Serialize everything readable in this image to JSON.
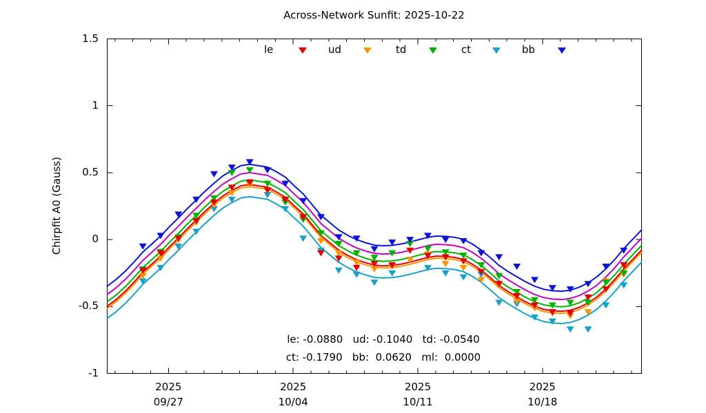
{
  "title": "Across-Network Sunfit: 2025-10-22",
  "ylabel": "Chirpfit A0 (Gauss)",
  "legend": [
    {
      "label": "le",
      "color": "#e40000"
    },
    {
      "label": "ud",
      "color": "#ff9400"
    },
    {
      "label": "td",
      "color": "#00b400"
    },
    {
      "label": "ct",
      "color": "#17a0c8"
    },
    {
      "label": "bb",
      "color": "#0a14d8"
    }
  ],
  "annotation": {
    "line1": "le: -0.0880   ud: -0.1040   td: -0.0540",
    "line2": "ct: -0.1790   bb:  0.0620   ml:  0.0000"
  },
  "chart_data": {
    "type": "line",
    "title": "Across-Network Sunfit: 2025-10-22",
    "xlabel": "",
    "ylabel": "Chirpfit A0 (Gauss)",
    "ylim": [
      -1,
      1.5
    ],
    "yticks": [
      {
        "v": -1,
        "label": "-1"
      },
      {
        "v": -0.5,
        "label": "-0.5"
      },
      {
        "v": 0,
        "label": "0"
      },
      {
        "v": 0.5,
        "label": "0.5"
      },
      {
        "v": 1,
        "label": "1"
      },
      {
        "v": 1.5,
        "label": "1.5"
      }
    ],
    "xlim_days": [
      0,
      30
    ],
    "xticks": [
      {
        "t": 3.44,
        "year": "2025",
        "date": "09/27"
      },
      {
        "t": 10.44,
        "year": "2025",
        "date": "10/04"
      },
      {
        "t": 17.44,
        "year": "2025",
        "date": "10/11"
      },
      {
        "t": 24.44,
        "year": "2025",
        "date": "10/18"
      }
    ],
    "minor_xtick_first": 0.44,
    "minor_xtick_step": 1,
    "grid": false,
    "legend_position": "top-inside",
    "fit_offsets": {
      "le": -0.088,
      "ud": -0.104,
      "td": -0.054,
      "ct": -0.179,
      "bb": 0.062,
      "ml": 0.0
    },
    "master_curve": {
      "t": [
        0,
        0.5,
        1,
        1.5,
        2,
        2.5,
        3,
        3.5,
        4,
        4.5,
        5,
        5.5,
        6,
        6.5,
        7,
        7.5,
        8,
        8.5,
        9,
        9.5,
        10,
        10.5,
        11,
        11.5,
        12,
        12.5,
        13,
        13.5,
        14,
        14.5,
        15,
        15.5,
        16,
        16.5,
        17,
        17.5,
        18,
        18.5,
        19,
        19.5,
        20,
        20.5,
        21,
        21.5,
        22,
        22.5,
        23,
        23.5,
        24,
        24.5,
        25,
        25.5,
        26,
        26.5,
        27,
        27.5,
        28,
        28.5,
        29,
        29.5,
        30
      ],
      "v": [
        -0.41,
        -0.36,
        -0.3,
        -0.23,
        -0.155,
        -0.095,
        -0.035,
        0.035,
        0.1,
        0.17,
        0.235,
        0.3,
        0.36,
        0.415,
        0.455,
        0.49,
        0.5,
        0.49,
        0.48,
        0.445,
        0.405,
        0.34,
        0.28,
        0.2,
        0.12,
        0.065,
        0.01,
        -0.03,
        -0.062,
        -0.085,
        -0.103,
        -0.108,
        -0.105,
        -0.095,
        -0.08,
        -0.062,
        -0.045,
        -0.035,
        -0.038,
        -0.045,
        -0.06,
        -0.095,
        -0.14,
        -0.195,
        -0.255,
        -0.3,
        -0.34,
        -0.378,
        -0.41,
        -0.433,
        -0.444,
        -0.448,
        -0.44,
        -0.418,
        -0.385,
        -0.34,
        -0.28,
        -0.21,
        -0.13,
        -0.06,
        0.01
      ]
    },
    "marker_t": [
      2,
      3,
      4,
      5,
      6,
      7,
      8,
      9,
      10,
      11,
      12,
      13,
      14,
      15,
      16,
      17,
      18,
      19,
      20,
      21,
      22,
      23,
      24,
      25,
      26,
      27,
      28,
      29
    ],
    "series": [
      {
        "name": "ct",
        "color": "#17a0c8",
        "offset": -0.179,
        "marker_v": [
          -0.31,
          -0.21,
          -0.05,
          0.06,
          0.23,
          0.3,
          0.42,
          0.335,
          0.23,
          0.01,
          -0.08,
          -0.23,
          -0.26,
          -0.32,
          -0.25,
          -0.15,
          -0.21,
          -0.25,
          -0.28,
          -0.26,
          -0.47,
          -0.48,
          -0.58,
          -0.61,
          -0.67,
          -0.67,
          -0.49,
          -0.34
        ]
      },
      {
        "name": "ud",
        "color": "#ff9400",
        "offset": -0.104,
        "marker_v": [
          -0.27,
          -0.14,
          0.0,
          0.13,
          0.26,
          0.35,
          0.41,
          0.37,
          0.29,
          0.16,
          -0.01,
          -0.1,
          -0.17,
          -0.22,
          -0.2,
          -0.15,
          -0.108,
          -0.18,
          -0.21,
          -0.3,
          -0.34,
          -0.46,
          -0.51,
          -0.55,
          -0.57,
          -0.54,
          -0.31,
          -0.26
        ]
      },
      {
        "name": "td",
        "color": "#00b400",
        "offset": -0.054,
        "marker_v": [
          -0.22,
          -0.09,
          0.02,
          0.18,
          0.31,
          0.5,
          0.52,
          0.42,
          0.28,
          0.15,
          0.05,
          -0.03,
          -0.1,
          -0.134,
          -0.1,
          -0.03,
          -0.067,
          -0.093,
          -0.118,
          -0.19,
          -0.27,
          -0.39,
          -0.45,
          -0.49,
          -0.47,
          -0.47,
          -0.32,
          -0.25
        ]
      },
      {
        "name": "le",
        "color": "#e40000",
        "offset": -0.088,
        "marker_v": [
          -0.23,
          -0.1,
          0.01,
          0.14,
          0.28,
          0.39,
          0.43,
          0.37,
          0.3,
          0.17,
          -0.1,
          -0.14,
          -0.21,
          -0.18,
          -0.19,
          -0.08,
          -0.12,
          -0.13,
          -0.16,
          -0.24,
          -0.33,
          -0.42,
          -0.49,
          -0.54,
          -0.55,
          -0.43,
          -0.37,
          -0.19
        ]
      },
      {
        "name": "ml",
        "color": "#c400c4",
        "offset": 0.0,
        "marker_v": null
      },
      {
        "name": "bb",
        "color": "#0a14d8",
        "offset": 0.062,
        "marker_v": [
          -0.05,
          0.03,
          0.19,
          0.3,
          0.49,
          0.54,
          0.58,
          0.52,
          0.42,
          0.29,
          0.17,
          0.02,
          0.01,
          -0.07,
          -0.02,
          0.0,
          0.03,
          0.0,
          -0.01,
          -0.1,
          -0.13,
          -0.2,
          -0.3,
          -0.36,
          -0.37,
          -0.33,
          -0.2,
          -0.08
        ]
      }
    ]
  }
}
